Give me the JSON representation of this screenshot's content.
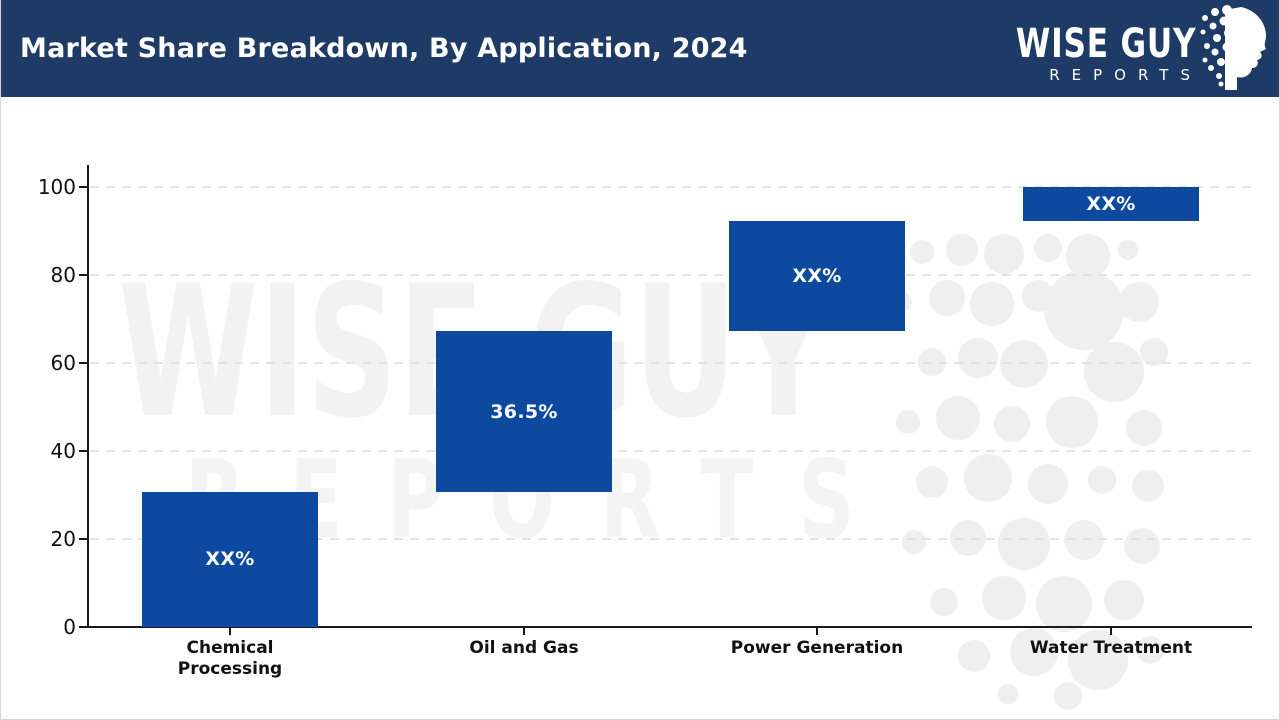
{
  "header": {
    "title": "Market Share Breakdown, By Application, 2024",
    "bg_color": "#1e3a66",
    "logo": {
      "line1": "WISE GUY",
      "line2": "REPORTS"
    }
  },
  "watermark": {
    "line1": "WISE GUY",
    "line2": "REPORTS",
    "color": "#f2f2f2"
  },
  "chart_data": {
    "type": "bar",
    "subtype": "waterfall-floating-bars",
    "title": "Market Share Breakdown, By Application, 2024",
    "categories": [
      "Chemical\nProcessing",
      "Oil and Gas",
      "Power Generation",
      "Water Treatment"
    ],
    "segments": [
      {
        "category": "Chemical Processing",
        "start": 0,
        "end": 30.7,
        "label": "XX%"
      },
      {
        "category": "Oil and Gas",
        "start": 30.7,
        "end": 67.2,
        "label": "36.5%",
        "value": 36.5
      },
      {
        "category": "Power Generation",
        "start": 67.2,
        "end": 92.3,
        "label": "XX%"
      },
      {
        "category": "Water Treatment",
        "start": 92.3,
        "end": 100,
        "label": "XX%"
      }
    ],
    "yticks": [
      0,
      20,
      40,
      60,
      80,
      100
    ],
    "ylim": [
      0,
      105
    ],
    "xlabel": "",
    "ylabel": "",
    "bar_color": "#0d4a9f",
    "grid": "horizontal-dashed",
    "legend_position": "none"
  }
}
